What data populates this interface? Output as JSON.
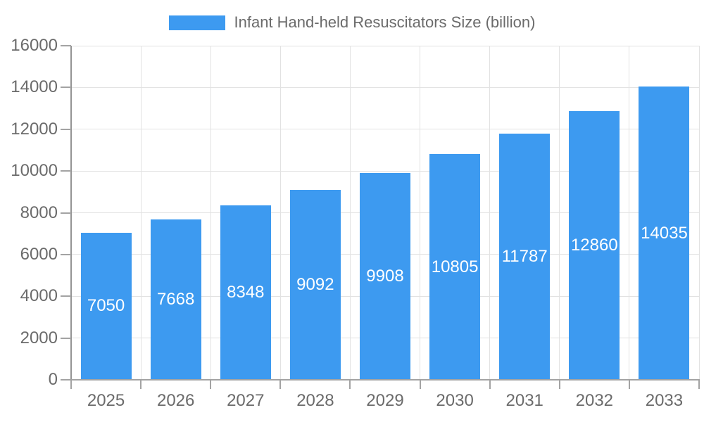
{
  "legend": {
    "label": "Infant Hand-held Resuscitators Size (billion)"
  },
  "colors": {
    "bar": "#3D9AF0",
    "bar_label": "#ffffff",
    "axis": "#a3a3a3",
    "grid": "#e2e2e2",
    "text": "#6b6b6b",
    "background": "#ffffff"
  },
  "chart_data": {
    "type": "bar",
    "title": "Infant Hand-held Resuscitators Size (billion)",
    "series_name": "Infant Hand-held Resuscitators Size (billion)",
    "categories": [
      "2025",
      "2026",
      "2027",
      "2028",
      "2029",
      "2030",
      "2031",
      "2032",
      "2033"
    ],
    "values": [
      7050,
      7668,
      8348,
      9092,
      9908,
      10805,
      11787,
      12860,
      14035
    ],
    "xlabel": "",
    "ylabel": "",
    "ylim": [
      0,
      16000
    ],
    "yticks": [
      0,
      2000,
      4000,
      6000,
      8000,
      10000,
      12000,
      14000,
      16000
    ],
    "grid": true,
    "legend_position": "top",
    "bar_labels_inside": true
  }
}
